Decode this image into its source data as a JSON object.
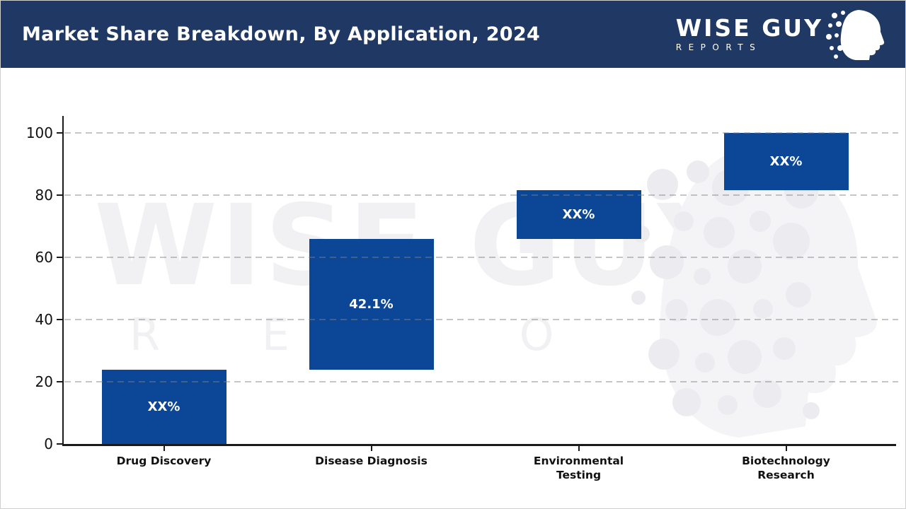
{
  "header": {
    "title": "Market Share Breakdown, By Application, 2024",
    "logo": {
      "line1": "WISE GUY",
      "line2": "REPORTS"
    }
  },
  "watermark": {
    "line1": "WISE GUY",
    "line2": "R E P O R T S"
  },
  "chart_data": {
    "type": "bar",
    "subtype": "floating-waterfall",
    "title": "Market Share Breakdown, By Application, 2024",
    "categories": [
      "Drug Discovery",
      "Disease Diagnosis",
      "Environmental Testing",
      "Biotechnology Research"
    ],
    "series": [
      {
        "name": "Market Share",
        "segments": [
          {
            "category": "Drug Discovery",
            "start": 0,
            "end": 23.8,
            "label": "XX%"
          },
          {
            "category": "Disease Diagnosis",
            "start": 23.8,
            "end": 65.9,
            "label": "42.1%"
          },
          {
            "category": "Environmental Testing",
            "start": 65.9,
            "end": 81.6,
            "label": "XX%"
          },
          {
            "category": "Biotechnology Research",
            "start": 81.6,
            "end": 100,
            "label": "XX%"
          }
        ]
      }
    ],
    "xlabel": "",
    "ylabel": "",
    "ylim": [
      0,
      100
    ],
    "yticks": [
      0,
      20,
      40,
      60,
      80,
      100
    ],
    "grid": "dashed-horizontal",
    "legend": "none",
    "bar_color": "#0b4697",
    "bar_label_color": "#ffffff",
    "header_color": "#1f3864"
  }
}
